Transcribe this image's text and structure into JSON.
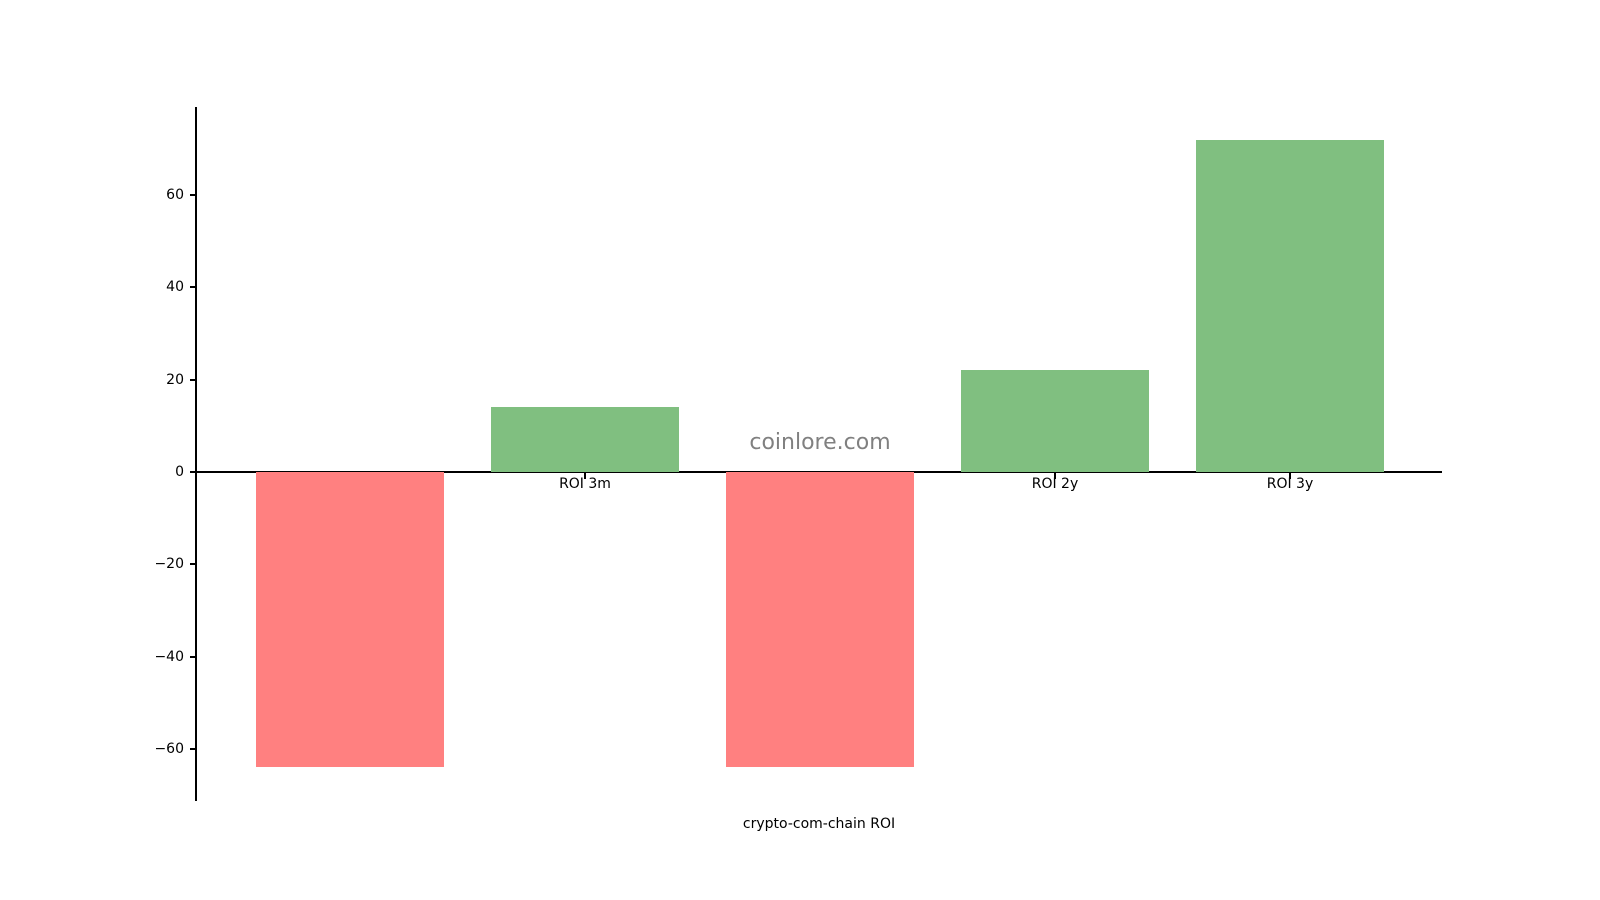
{
  "watermark": "coinlore.com",
  "chart_data": {
    "type": "bar",
    "title": "crypto-com-chain ROI",
    "xlabel": "",
    "ylabel": "",
    "categories": [
      "",
      "ROI 3m",
      "",
      "ROI 2y",
      "ROI 3y"
    ],
    "values": [
      -64,
      14,
      -64,
      22,
      72
    ],
    "label_visible": [
      false,
      true,
      false,
      true,
      true
    ],
    "bar_colors": [
      "#ff8080",
      "#80bf80",
      "#ff8080",
      "#80bf80",
      "#80bf80"
    ],
    "positive_color": "#80bf80",
    "negative_color": "#ff8080",
    "yticks": [
      60,
      40,
      20,
      0,
      -20,
      -40,
      -60
    ],
    "ytick_labels": [
      "60",
      "40",
      "20",
      "0",
      "−20",
      "−40",
      "−60"
    ],
    "ylim": [
      -71,
      79
    ],
    "grid": false,
    "legend": null,
    "axis_color": "#000000",
    "text_color": "#000000",
    "watermark_color": "#808080"
  }
}
